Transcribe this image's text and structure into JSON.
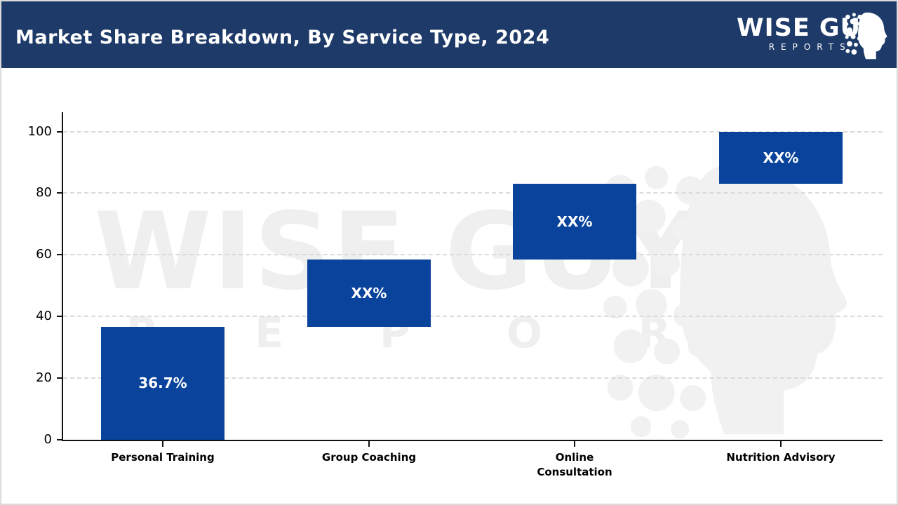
{
  "header": {
    "title": "Market Share Breakdown, By Service Type, 2024",
    "background_color": "#1e3a68"
  },
  "logo": {
    "name_line": "WISE GUY",
    "sub_line": "REPORTS",
    "head_icon": "dotted-head-profile-icon"
  },
  "watermark": {
    "main_text": "WISE GUY",
    "sub_text": "REPORTS",
    "head_icon": "dotted-head-profile-watermark",
    "color": "#efefef"
  },
  "chart_data": {
    "type": "bar",
    "subtype": "waterfall-floating-bars",
    "title": "Market Share Breakdown, By Service Type, 2024",
    "categories": [
      "Personal Training",
      "Group Coaching",
      "Online Consultation",
      "Nutrition Advisory"
    ],
    "segments": [
      {
        "category_lines": [
          "Personal Training"
        ],
        "start": 0,
        "end": 36.7,
        "label": "36.7%"
      },
      {
        "category_lines": [
          "Group Coaching"
        ],
        "start": 36.7,
        "end": 58.5,
        "label": "XX%"
      },
      {
        "category_lines": [
          "Online",
          "Consultation"
        ],
        "start": 58.5,
        "end": 83.0,
        "label": "XX%"
      },
      {
        "category_lines": [
          "Nutrition Advisory"
        ],
        "start": 83.0,
        "end": 100.0,
        "label": "XX%"
      }
    ],
    "bar_color": "#09439b",
    "label_color": "#ffffff",
    "xlabel": "",
    "ylabel": "",
    "ylim": [
      0,
      100
    ],
    "yticks": [
      0,
      20,
      40,
      60,
      80,
      100
    ],
    "grid": "dashed horizontal",
    "legend": "none"
  }
}
